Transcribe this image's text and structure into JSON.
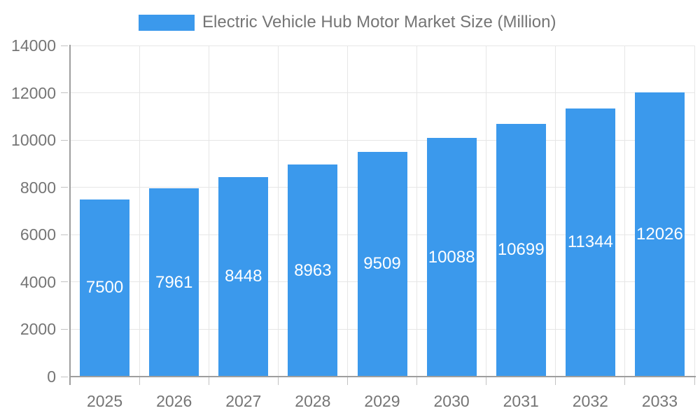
{
  "chart_data": {
    "type": "bar",
    "title": "Electric Vehicle Hub Motor Market Size (Million)",
    "legend": [
      "Electric Vehicle Hub Motor Market Size (Million)"
    ],
    "legend_position": "top",
    "categories": [
      "2025",
      "2026",
      "2027",
      "2028",
      "2029",
      "2030",
      "2031",
      "2032",
      "2033"
    ],
    "values": [
      7500,
      7961,
      8448,
      8963,
      9509,
      10088,
      10699,
      11344,
      12026
    ],
    "xlabel": "",
    "ylabel": "",
    "ylim": [
      0,
      14000
    ],
    "yticks": [
      0,
      2000,
      4000,
      6000,
      8000,
      10000,
      12000,
      14000
    ],
    "grid": true,
    "value_labels": "inside-center",
    "colors": {
      "bar": "#3B99EC",
      "grid": "#E6E6E6",
      "axis": "#9E9E9E",
      "tick": "#C2C2C2",
      "text": "#757575",
      "value_text": "#FFFFFF",
      "background": "#FFFFFF"
    }
  }
}
